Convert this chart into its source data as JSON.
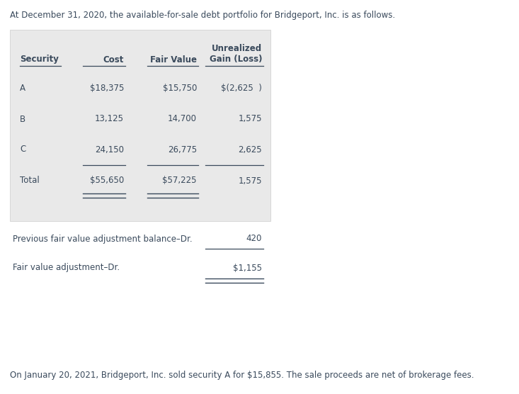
{
  "title_text": "At December 31, 2020, the available-for-sale debt portfolio for Bridgeport, Inc. is as follows.",
  "footer_text": "On January 20, 2021, Bridgeport, Inc. sold security A for $15,855. The sale proceeds are net of brokerage fees.",
  "header_labels": [
    "Security",
    "Cost",
    "Fair Value",
    "Unrealized\nGain (Loss)"
  ],
  "data_rows": [
    [
      "A",
      "$18,375",
      "$15,750",
      "$(2,625  )"
    ],
    [
      "B",
      "13,125",
      "14,700",
      "1,575"
    ],
    [
      "C",
      "24,150",
      "26,775",
      "2,625"
    ]
  ],
  "total_row": [
    "Total",
    "$55,650",
    "$57,225",
    "1,575"
  ],
  "extra_row1_label": "Previous fair value adjustment balance–Dr.",
  "extra_row1_val": "420",
  "extra_row2_label": "Fair value adjustment–Dr.",
  "extra_row2_val": "$1,155",
  "outer_bg": "#ffffff",
  "table_bg": "#e9e9e9",
  "text_color": "#3a4a5c",
  "font_size": 8.5,
  "title_font_size": 8.5,
  "footer_font_size": 8.5
}
